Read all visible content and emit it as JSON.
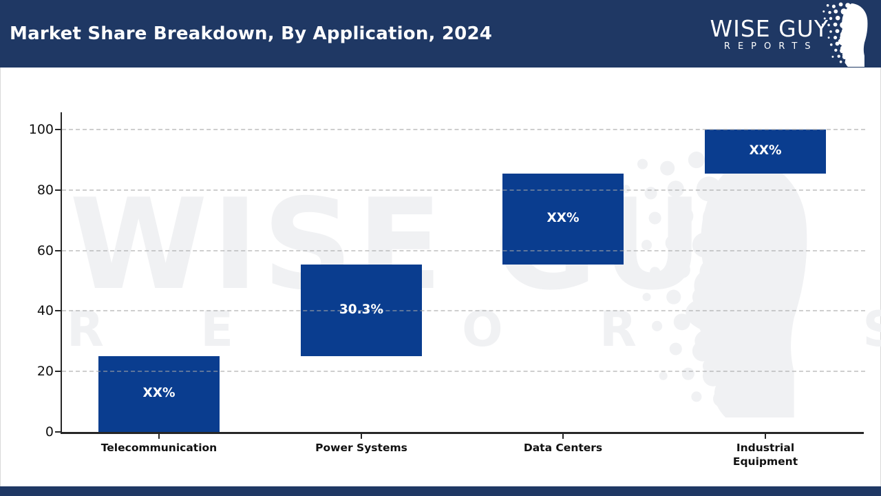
{
  "header": {
    "title": "Market Share Breakdown, By Application, 2024",
    "logo": {
      "line1": "WISE GUY",
      "line2": "REPORTS"
    }
  },
  "watermark": {
    "line1": "WISE GUY",
    "line2": "R E P O R T S"
  },
  "chart_data": {
    "type": "bar",
    "subtype": "waterfall",
    "title": "Market Share Breakdown, By Application, 2024",
    "categories": [
      "Telecommunication",
      "Power Systems",
      "Data Centers",
      "Industrial Equipment"
    ],
    "bars": [
      {
        "category": "Telecommunication",
        "start": 0,
        "end": 25,
        "label": "XX%"
      },
      {
        "category": "Power Systems",
        "start": 25,
        "end": 55.3,
        "label": "30.3%"
      },
      {
        "category": "Data Centers",
        "start": 55.3,
        "end": 85.5,
        "label": "XX%"
      },
      {
        "category": "Industrial Equipment",
        "start": 85.5,
        "end": 100,
        "label": "XX%"
      }
    ],
    "ylim": [
      0,
      100
    ],
    "yticks": [
      0,
      20,
      40,
      60,
      80,
      100
    ],
    "grid": "dashed horizontal gridlines",
    "legend": "none",
    "bar_color": "#0a3d8f",
    "bar_label_color": "#ffffff"
  },
  "colors": {
    "header_bg": "#1f3864",
    "footer_bg": "#1f3864",
    "bar": "#0a3d8f",
    "watermark": "#f0f1f3",
    "axis": "#262626"
  }
}
